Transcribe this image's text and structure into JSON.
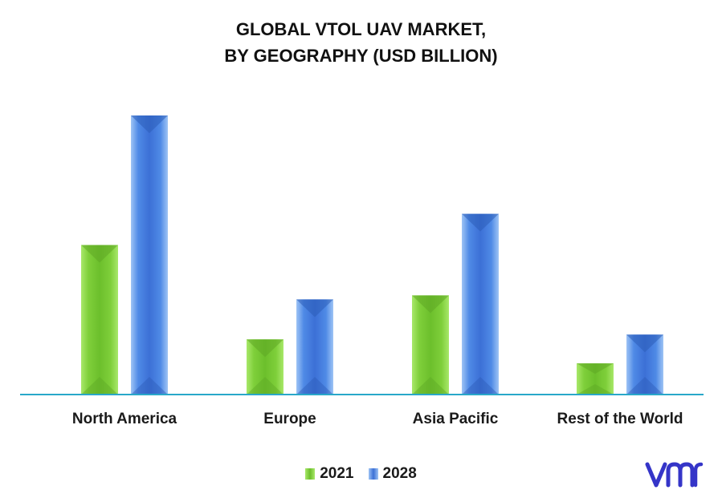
{
  "chart_data": {
    "type": "bar",
    "title_line1": "GLOBAL VTOL UAV MARKET,",
    "title_line2": "BY GEOGRAPHY (USD BILLION)",
    "categories": [
      "North America",
      "Europe",
      "Asia Pacific",
      "Rest of the World"
    ],
    "series": [
      {
        "name": "2021",
        "values": [
          1.87,
          0.69,
          1.24,
          0.39
        ],
        "color": "#7fcf3a"
      },
      {
        "name": "2028",
        "values": [
          3.49,
          1.19,
          2.26,
          0.75
        ],
        "color": "#3c78dc"
      }
    ],
    "xlabel": "",
    "ylabel": "",
    "ylim": [
      0,
      3.49
    ],
    "grid": false,
    "legend": "bottom-center",
    "axis_color": "#29a8c9"
  },
  "logo": {
    "icon": "vmr-logo-icon",
    "color": "#3535c8"
  }
}
